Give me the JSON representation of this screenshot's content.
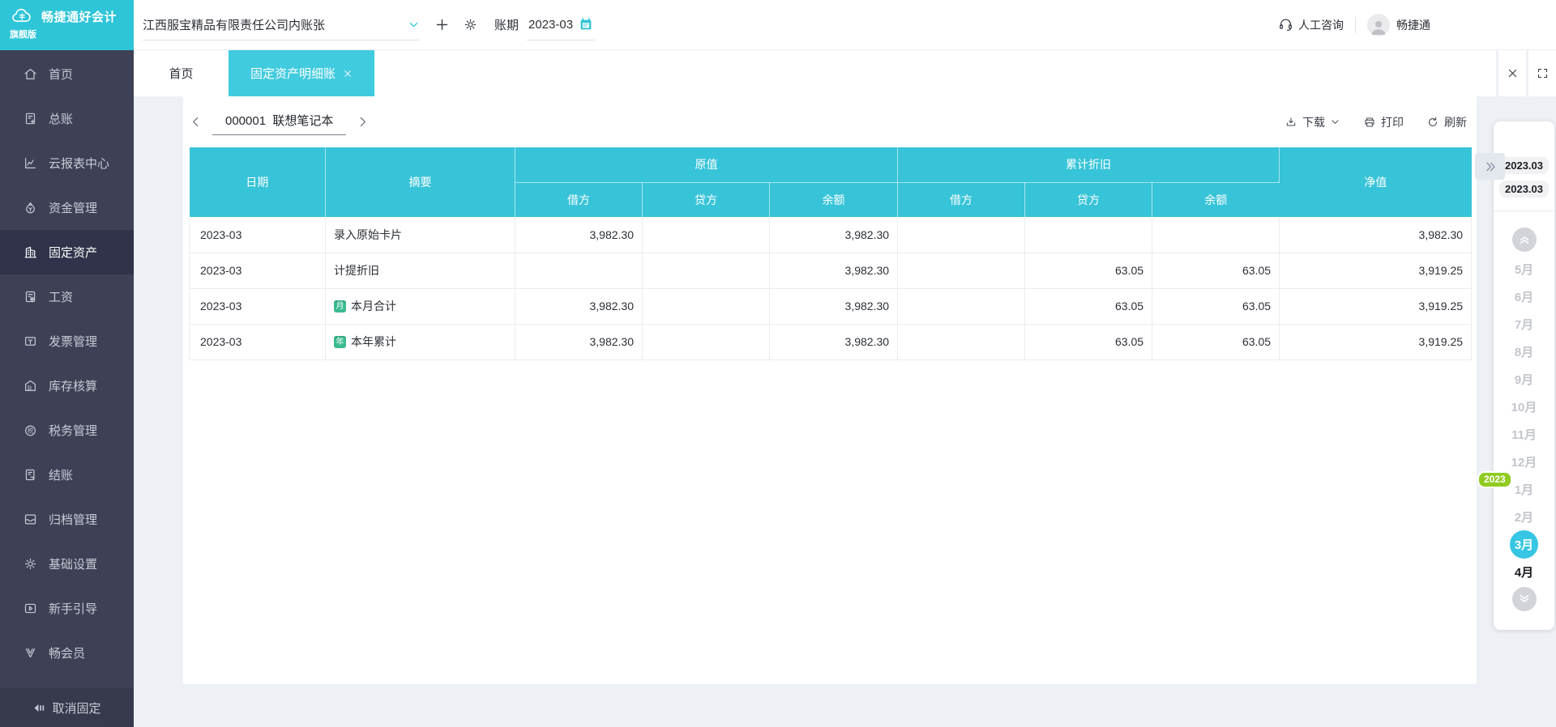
{
  "brand": {
    "name": "畅捷通好会计",
    "edition": "旗舰版"
  },
  "topbar": {
    "company": "江西服宝精品有限责任公司内账张",
    "period_label": "账期",
    "period_value": "2023-03",
    "support_label": "人工咨询",
    "user_name": "畅捷通"
  },
  "sidebar": {
    "items": [
      {
        "label": "首页",
        "icon": "home-icon",
        "active": false
      },
      {
        "label": "总账",
        "icon": "ledger-icon",
        "active": false
      },
      {
        "label": "云报表中心",
        "icon": "report-icon",
        "active": false
      },
      {
        "label": "资金管理",
        "icon": "funds-icon",
        "active": false
      },
      {
        "label": "固定资产",
        "icon": "fixed-assets-icon",
        "active": true
      },
      {
        "label": "工资",
        "icon": "salary-icon",
        "active": false
      },
      {
        "label": "发票管理",
        "icon": "invoice-icon",
        "active": false
      },
      {
        "label": "库存核算",
        "icon": "inventory-icon",
        "active": false
      },
      {
        "label": "税务管理",
        "icon": "tax-icon",
        "active": false
      },
      {
        "label": "结账",
        "icon": "closing-icon",
        "active": false
      },
      {
        "label": "归档管理",
        "icon": "archive-icon",
        "active": false
      },
      {
        "label": "基础设置",
        "icon": "settings-icon",
        "active": false
      },
      {
        "label": "新手引导",
        "icon": "guide-icon",
        "active": false
      },
      {
        "label": "畅会员",
        "icon": "member-icon",
        "active": false
      }
    ],
    "collapse_label": "取消固定"
  },
  "tabs": [
    {
      "label": "首页",
      "active": false,
      "closable": false
    },
    {
      "label": "固定资产明细账",
      "active": true,
      "closable": true
    }
  ],
  "toolbar": {
    "asset_code": "000001  联想笔记本",
    "download_label": "下载",
    "print_label": "打印",
    "refresh_label": "刷新"
  },
  "table": {
    "columns": {
      "date": "日期",
      "summary": "摘要",
      "original_value_group": "原值",
      "accumulated_depreciation_group": "累计折旧",
      "net_value": "净值"
    },
    "sub_columns": [
      "借方",
      "贷方",
      "余额",
      "借方",
      "贷方",
      "余额"
    ],
    "rows": [
      {
        "date": "2023-03",
        "summary": "录入原始卡片",
        "summary_icon": "",
        "ov_debit": "3,982.30",
        "ov_credit": "",
        "ov_balance": "3,982.30",
        "dep_debit": "",
        "dep_credit": "",
        "dep_balance": "",
        "net": "3,982.30"
      },
      {
        "date": "2023-03",
        "summary": "计提折旧",
        "summary_icon": "",
        "ov_debit": "",
        "ov_credit": "",
        "ov_balance": "3,982.30",
        "dep_debit": "",
        "dep_credit": "63.05",
        "dep_balance": "63.05",
        "net": "3,919.25"
      },
      {
        "date": "2023-03",
        "summary": "本月合计",
        "summary_icon": "月",
        "ov_debit": "3,982.30",
        "ov_credit": "",
        "ov_balance": "3,982.30",
        "dep_debit": "",
        "dep_credit": "63.05",
        "dep_balance": "63.05",
        "net": "3,919.25"
      },
      {
        "date": "2023-03",
        "summary": "本年累计",
        "summary_icon": "年",
        "ov_debit": "3,982.30",
        "ov_credit": "",
        "ov_balance": "3,982.30",
        "dep_debit": "",
        "dep_credit": "63.05",
        "dep_balance": "63.05",
        "net": "3,919.25"
      }
    ]
  },
  "period_panel": {
    "year_month_top": "2023.03",
    "year_month_bottom": "2023.03",
    "year_badge": "2023",
    "months": [
      {
        "label": "5月",
        "state": "muted"
      },
      {
        "label": "6月",
        "state": "muted"
      },
      {
        "label": "7月",
        "state": "muted"
      },
      {
        "label": "8月",
        "state": "muted"
      },
      {
        "label": "9月",
        "state": "muted"
      },
      {
        "label": "10月",
        "state": "muted"
      },
      {
        "label": "11月",
        "state": "muted"
      },
      {
        "label": "12月",
        "state": "muted"
      },
      {
        "label": "1月",
        "state": "muted"
      },
      {
        "label": "2月",
        "state": "muted"
      },
      {
        "label": "3月",
        "state": "selected"
      },
      {
        "label": "4月",
        "state": "current"
      }
    ]
  },
  "colors": {
    "teal": "#2ec5d8",
    "teal_tab": "#41cbde",
    "table_head": "#38c4d8",
    "sidebar_bg": "#3e4156",
    "sidebar_active": "#30334a",
    "content_bg": "#edf0f4",
    "badge_green": "#8fcb20",
    "chip_green": "#3cba92",
    "chip_green_dark": "#2ea87f",
    "month_teal": "#36c6e4"
  }
}
